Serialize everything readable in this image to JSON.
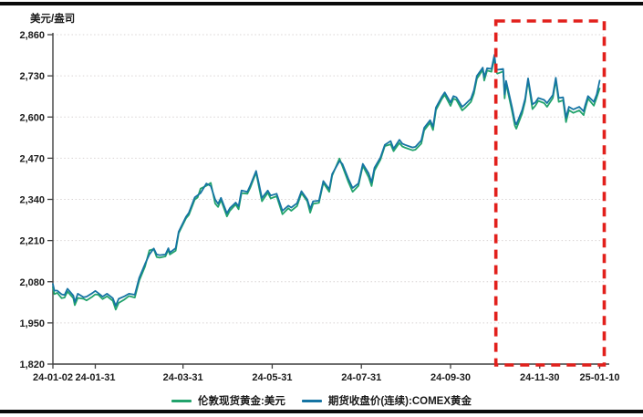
{
  "header": {
    "y_axis_unit": "美元/盎司"
  },
  "legend": {
    "items": [
      {
        "label": "伦敦现货黄金:美元",
        "color": "#22a36c"
      },
      {
        "label": "期货收盘价(连续):COMEX黄金",
        "color": "#1574a3"
      }
    ]
  },
  "colors": {
    "spot_line": "#22a36c",
    "futures_line": "#1574a3",
    "highlight_red": "#e2201c",
    "gridline": "#d9d4d4",
    "axis": "#3f3f3f",
    "text": "#1a1a1a",
    "background": "#ffffff",
    "border_bar": "#0a0a0a"
  },
  "chart_data": {
    "type": "line",
    "title": "",
    "xlabel": "",
    "ylabel": "美元/盎司",
    "ylim": [
      1820,
      2860
    ],
    "x_range": [
      "2024-01-02",
      "2025-01-10"
    ],
    "grid": "horizontal-dotted",
    "legend_position": "bottom",
    "y_ticks": [
      {
        "value": 2860,
        "label": "2,860"
      },
      {
        "value": 2730,
        "label": "2,730"
      },
      {
        "value": 2600,
        "label": "2,600"
      },
      {
        "value": 2470,
        "label": "2,470"
      },
      {
        "value": 2340,
        "label": "2,340"
      },
      {
        "value": 2210,
        "label": "2,210"
      },
      {
        "value": 2080,
        "label": "2,080"
      },
      {
        "value": 1950,
        "label": "1,950"
      },
      {
        "value": 1820,
        "label": "1,820"
      }
    ],
    "x_ticks": [
      {
        "date": "2024-01-02",
        "label": "24-01-02"
      },
      {
        "date": "2024-01-31",
        "label": "24-01-31"
      },
      {
        "date": "2024-03-31",
        "label": "24-03-31"
      },
      {
        "date": "2024-05-31",
        "label": "24-05-31"
      },
      {
        "date": "2024-07-31",
        "label": "24-07-31"
      },
      {
        "date": "2024-09-30",
        "label": "24-09-30"
      },
      {
        "date": "2024-11-30",
        "label": "24-11-30"
      },
      {
        "date": "2025-01-10",
        "label": "25-01-10"
      }
    ],
    "highlight": {
      "shape": "dashed-box",
      "color": "#e2201c",
      "start_date": "2024-10-31",
      "end_date": "2025-01-10"
    },
    "series": [
      {
        "name": "伦敦现货黄金:美元",
        "color": "#22a36c",
        "column": 1
      },
      {
        "name": "期货收盘价(连续):COMEX黄金",
        "color": "#1574a3",
        "column": 2
      }
    ],
    "points": [
      [
        "2024-01-02",
        2063,
        2073
      ],
      [
        "2024-01-03",
        2041,
        2052
      ],
      [
        "2024-01-05",
        2045,
        2052
      ],
      [
        "2024-01-08",
        2028,
        2040
      ],
      [
        "2024-01-10",
        2030,
        2038
      ],
      [
        "2024-01-12",
        2049,
        2058
      ],
      [
        "2024-01-16",
        2028,
        2036
      ],
      [
        "2024-01-17",
        2006,
        2016
      ],
      [
        "2024-01-19",
        2029,
        2042
      ],
      [
        "2024-01-23",
        2026,
        2031
      ],
      [
        "2024-01-25",
        2021,
        2033
      ],
      [
        "2024-01-29",
        2033,
        2044
      ],
      [
        "2024-01-31",
        2040,
        2051
      ],
      [
        "2024-02-02",
        2039,
        2044
      ],
      [
        "2024-02-05",
        2025,
        2033
      ],
      [
        "2024-02-08",
        2034,
        2042
      ],
      [
        "2024-02-12",
        2020,
        2028
      ],
      [
        "2024-02-14",
        1992,
        2004
      ],
      [
        "2024-02-16",
        2013,
        2026
      ],
      [
        "2024-02-20",
        2024,
        2034
      ],
      [
        "2024-02-23",
        2035,
        2042
      ],
      [
        "2024-02-27",
        2030,
        2039
      ],
      [
        "2024-03-01",
        2083,
        2092
      ],
      [
        "2024-03-05",
        2128,
        2136
      ],
      [
        "2024-03-08",
        2179,
        2166
      ],
      [
        "2024-03-11",
        2183,
        2185
      ],
      [
        "2024-03-13",
        2158,
        2166
      ],
      [
        "2024-03-15",
        2156,
        2164
      ],
      [
        "2024-03-19",
        2160,
        2166
      ],
      [
        "2024-03-21",
        2181,
        2186
      ],
      [
        "2024-03-22",
        2166,
        2172
      ],
      [
        "2024-03-26",
        2178,
        2186
      ],
      [
        "2024-03-28",
        2233,
        2238
      ],
      [
        "2024-04-02",
        2280,
        2285
      ],
      [
        "2024-04-04",
        2291,
        2298
      ],
      [
        "2024-04-08",
        2339,
        2346
      ],
      [
        "2024-04-10",
        2346,
        2353
      ],
      [
        "2024-04-12",
        2374,
        2360
      ],
      [
        "2024-04-16",
        2383,
        2390
      ],
      [
        "2024-04-19",
        2392,
        2382
      ],
      [
        "2024-04-22",
        2327,
        2340
      ],
      [
        "2024-04-24",
        2316,
        2326
      ],
      [
        "2024-04-26",
        2338,
        2345
      ],
      [
        "2024-04-30",
        2286,
        2296
      ],
      [
        "2024-05-02",
        2304,
        2312
      ],
      [
        "2024-05-06",
        2324,
        2330
      ],
      [
        "2024-05-08",
        2309,
        2318
      ],
      [
        "2024-05-10",
        2360,
        2368
      ],
      [
        "2024-05-14",
        2358,
        2364
      ],
      [
        "2024-05-16",
        2377,
        2384
      ],
      [
        "2024-05-20",
        2425,
        2430
      ],
      [
        "2024-05-22",
        2378,
        2388
      ],
      [
        "2024-05-24",
        2334,
        2344
      ],
      [
        "2024-05-28",
        2361,
        2368
      ],
      [
        "2024-05-30",
        2343,
        2352
      ],
      [
        "2024-06-03",
        2350,
        2358
      ],
      [
        "2024-06-07",
        2293,
        2304
      ],
      [
        "2024-06-11",
        2312,
        2320
      ],
      [
        "2024-06-13",
        2304,
        2314
      ],
      [
        "2024-06-17",
        2319,
        2328
      ],
      [
        "2024-06-20",
        2360,
        2366
      ],
      [
        "2024-06-24",
        2334,
        2340
      ],
      [
        "2024-06-26",
        2298,
        2310
      ],
      [
        "2024-06-28",
        2326,
        2334
      ],
      [
        "2024-07-02",
        2329,
        2336
      ],
      [
        "2024-07-05",
        2392,
        2398
      ],
      [
        "2024-07-09",
        2364,
        2372
      ],
      [
        "2024-07-11",
        2415,
        2420
      ],
      [
        "2024-07-16",
        2469,
        2461
      ],
      [
        "2024-07-18",
        2445,
        2452
      ],
      [
        "2024-07-22",
        2396,
        2406
      ],
      [
        "2024-07-25",
        2364,
        2376
      ],
      [
        "2024-07-29",
        2383,
        2390
      ],
      [
        "2024-08-01",
        2446,
        2452
      ],
      [
        "2024-08-05",
        2410,
        2422
      ],
      [
        "2024-08-07",
        2382,
        2394
      ],
      [
        "2024-08-09",
        2431,
        2440
      ],
      [
        "2024-08-13",
        2465,
        2472
      ],
      [
        "2024-08-16",
        2508,
        2512
      ],
      [
        "2024-08-20",
        2514,
        2524
      ],
      [
        "2024-08-22",
        2492,
        2500
      ],
      [
        "2024-08-26",
        2518,
        2528
      ],
      [
        "2024-08-28",
        2507,
        2516
      ],
      [
        "2024-08-30",
        2503,
        2512
      ],
      [
        "2024-09-04",
        2495,
        2504
      ],
      [
        "2024-09-06",
        2497,
        2506
      ],
      [
        "2024-09-10",
        2516,
        2526
      ],
      [
        "2024-09-12",
        2558,
        2566
      ],
      [
        "2024-09-16",
        2582,
        2590
      ],
      [
        "2024-09-18",
        2559,
        2570
      ],
      [
        "2024-09-20",
        2622,
        2630
      ],
      [
        "2024-09-24",
        2657,
        2664
      ],
      [
        "2024-09-26",
        2670,
        2678
      ],
      [
        "2024-09-30",
        2635,
        2646
      ],
      [
        "2024-10-02",
        2658,
        2666
      ],
      [
        "2024-10-04",
        2654,
        2662
      ],
      [
        "2024-10-08",
        2621,
        2632
      ],
      [
        "2024-10-10",
        2629,
        2640
      ],
      [
        "2024-10-14",
        2648,
        2658
      ],
      [
        "2024-10-16",
        2674,
        2684
      ],
      [
        "2024-10-18",
        2721,
        2730
      ],
      [
        "2024-10-22",
        2749,
        2756
      ],
      [
        "2024-10-23",
        2715,
        2726
      ],
      [
        "2024-10-25",
        2747,
        2754
      ],
      [
        "2024-10-28",
        2743,
        2752
      ],
      [
        "2024-10-30",
        2788,
        2796
      ],
      [
        "2024-10-31",
        2744,
        2756
      ],
      [
        "2024-11-01",
        2737,
        2749
      ],
      [
        "2024-11-05",
        2744,
        2752
      ],
      [
        "2024-11-06",
        2659,
        2672
      ],
      [
        "2024-11-07",
        2707,
        2714
      ],
      [
        "2024-11-08",
        2684,
        2694
      ],
      [
        "2024-11-11",
        2620,
        2632
      ],
      [
        "2024-11-13",
        2573,
        2586
      ],
      [
        "2024-11-14",
        2563,
        2576
      ],
      [
        "2024-11-18",
        2611,
        2622
      ],
      [
        "2024-11-20",
        2650,
        2658
      ],
      [
        "2024-11-22",
        2716,
        2722
      ],
      [
        "2024-11-25",
        2625,
        2640
      ],
      [
        "2024-11-27",
        2636,
        2646
      ],
      [
        "2024-11-29",
        2651,
        2660
      ],
      [
        "2024-12-03",
        2644,
        2654
      ],
      [
        "2024-12-05",
        2632,
        2644
      ],
      [
        "2024-12-09",
        2660,
        2670
      ],
      [
        "2024-12-11",
        2718,
        2724
      ],
      [
        "2024-12-13",
        2648,
        2660
      ],
      [
        "2024-12-16",
        2653,
        2662
      ],
      [
        "2024-12-18",
        2584,
        2598
      ],
      [
        "2024-12-20",
        2622,
        2632
      ],
      [
        "2024-12-23",
        2613,
        2624
      ],
      [
        "2024-12-27",
        2621,
        2632
      ],
      [
        "2024-12-30",
        2606,
        2618
      ],
      [
        "2024-12-31",
        2625,
        2636
      ],
      [
        "2025-01-02",
        2658,
        2666
      ],
      [
        "2025-01-06",
        2636,
        2648
      ],
      [
        "2025-01-08",
        2662,
        2672
      ],
      [
        "2025-01-10",
        2690,
        2715
      ]
    ]
  }
}
